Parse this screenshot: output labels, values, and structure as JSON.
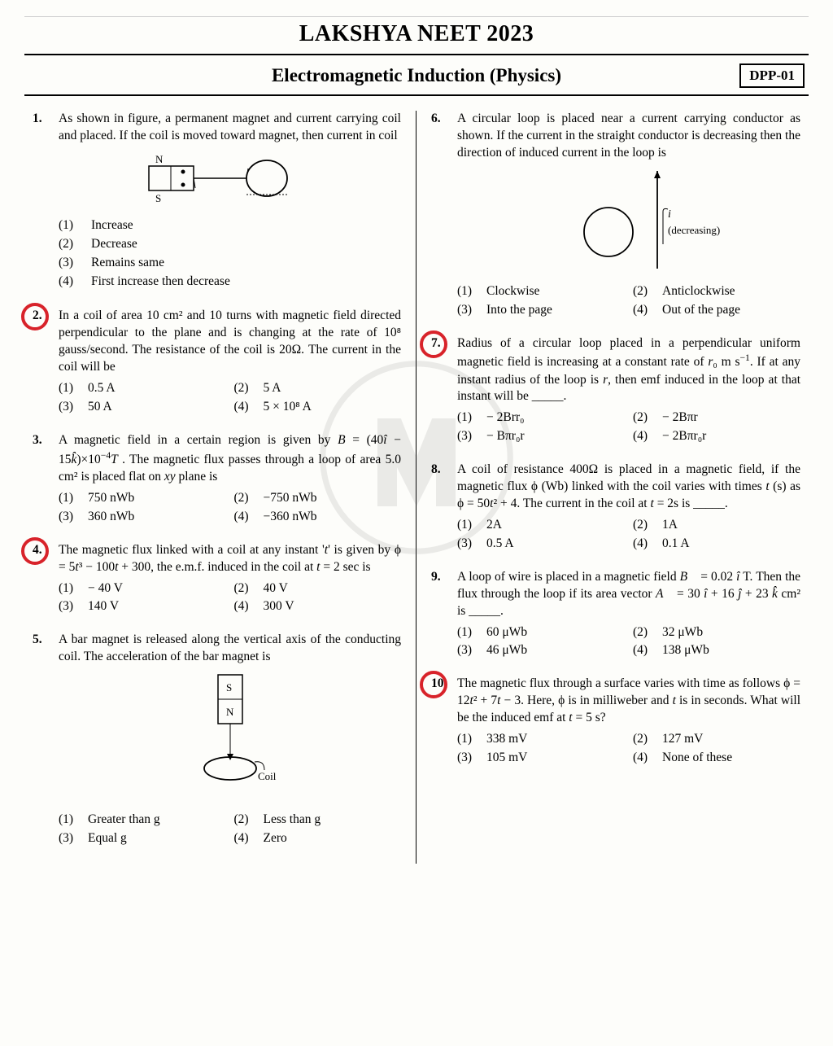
{
  "header": {
    "main_title": "LAKSHYA NEET 2023",
    "chapter": "Electromagnetic Induction (Physics)",
    "dpp": "DPP-01"
  },
  "circled_questions": [
    2,
    4,
    7,
    10
  ],
  "left": [
    {
      "num": "1.",
      "text": "As shown in figure, a permanent magnet and current carrying coil and placed. If the coil is moved toward magnet, then current in coil",
      "figure": "magnet_coil",
      "options_layout": "col",
      "options": [
        {
          "n": "(1)",
          "t": "Increase"
        },
        {
          "n": "(2)",
          "t": "Decrease"
        },
        {
          "n": "(3)",
          "t": "Remains same"
        },
        {
          "n": "(4)",
          "t": "First increase then decrease"
        }
      ]
    },
    {
      "num": "2.",
      "circled": true,
      "text": "In a coil of area 10 cm² and 10 turns with magnetic field directed perpendicular to the plane and is changing at the rate of 10⁸ gauss/second. The resistance of the coil is 20Ω. The current in the coil will be",
      "options_layout": "grid",
      "options": [
        {
          "n": "(1)",
          "t": "0.5 A"
        },
        {
          "n": "(2)",
          "t": "5 A"
        },
        {
          "n": "(3)",
          "t": "50 A"
        },
        {
          "n": "(4)",
          "t": "5 × 10⁸ A"
        }
      ]
    },
    {
      "num": "3.",
      "text_html": "A magnetic field in a certain region is given by <i>B</i> = (40<i>î</i> − 15<i>k̂</i>)×10<sup>−4</sup><i>T</i> . The magnetic flux passes through a loop of area 5.0 cm² is placed flat on <i>xy</i> plane is",
      "options_layout": "grid",
      "options": [
        {
          "n": "(1)",
          "t": "750 nWb"
        },
        {
          "n": "(2)",
          "t": "−750 nWb"
        },
        {
          "n": "(3)",
          "t": "360 nWb"
        },
        {
          "n": "(4)",
          "t": "−360 nWb"
        }
      ]
    },
    {
      "num": "4.",
      "circled": true,
      "text_html": "The magnetic flux linked with a coil at any instant '<i>t</i>' is given by ϕ = 5<i>t</i>³ − 100<i>t</i> + 300, the e.m.f. induced in the coil at <i>t</i> = 2 sec is",
      "options_layout": "grid",
      "options": [
        {
          "n": "(1)",
          "t": "− 40 V"
        },
        {
          "n": "(2)",
          "t": "40 V"
        },
        {
          "n": "(3)",
          "t": "140 V"
        },
        {
          "n": "(4)",
          "t": "300 V"
        }
      ]
    },
    {
      "num": "5.",
      "text": "A bar magnet is released along the vertical axis of the conducting coil. The acceleration of the bar magnet is",
      "figure": "magnet_drop",
      "options_layout": "grid",
      "options": [
        {
          "n": "(1)",
          "t": "Greater than g"
        },
        {
          "n": "(2)",
          "t": "Less than g"
        },
        {
          "n": "(3)",
          "t": "Equal g"
        },
        {
          "n": "(4)",
          "t": "Zero"
        }
      ]
    }
  ],
  "right": [
    {
      "num": "6.",
      "text": "A circular loop is placed near a current carrying conductor as shown. If the current in the straight conductor is decreasing then the direction of induced current in the loop is",
      "figure": "loop_wire",
      "figure_label_i": "i",
      "figure_label_dec": "(decreasing)",
      "options_layout": "grid",
      "options": [
        {
          "n": "(1)",
          "t": "Clockwise"
        },
        {
          "n": "(2)",
          "t": "Anticlockwise"
        },
        {
          "n": "(3)",
          "t": "Into the page"
        },
        {
          "n": "(4)",
          "t": "Out of the page"
        }
      ]
    },
    {
      "num": "7.",
      "circled": true,
      "text_html": "Radius of a circular loop placed in a perpendicular uniform magnetic field is increasing at a constant rate of <i>r</i>₀ m s<sup>−1</sup>. If at any instant radius of the loop is <i>r</i>, then emf induced in the loop at that instant will be _____.",
      "options_layout": "grid",
      "options": [
        {
          "n": "(1)",
          "t": "− 2Brr₀"
        },
        {
          "n": "(2)",
          "t": "− 2Bπr"
        },
        {
          "n": "(3)",
          "t": "− Bπr₀r"
        },
        {
          "n": "(4)",
          "t": "− 2Bπr₀r"
        }
      ]
    },
    {
      "num": "8.",
      "text_html": "A coil of resistance 400Ω is placed in a magnetic field, if the magnetic flux ϕ (Wb) linked with the coil varies with times <i>t</i> (s) as ϕ = 50<i>t</i>² + 4. The current in the coil at <i>t</i> = 2s is _____.",
      "options_layout": "grid",
      "options": [
        {
          "n": "(1)",
          "t": "2A"
        },
        {
          "n": "(2)",
          "t": "1A"
        },
        {
          "n": "(3)",
          "t": "0.5 A"
        },
        {
          "n": "(4)",
          "t": "0.1 A"
        }
      ]
    },
    {
      "num": "9.",
      "text_html": "A loop of wire is placed in a magnetic field <i>B⃗</i> = 0.02 <i>î</i> T. Then the flux through the loop if its area vector <i>A⃗</i> = 30 <i>î</i> + 16 <i>ĵ</i> + 23 <i>k̂</i> cm² is _____.",
      "options_layout": "grid",
      "options": [
        {
          "n": "(1)",
          "t": "60 μWb"
        },
        {
          "n": "(2)",
          "t": "32 μWb"
        },
        {
          "n": "(3)",
          "t": "46 μWb"
        },
        {
          "n": "(4)",
          "t": "138 μWb"
        }
      ]
    },
    {
      "num": "10.",
      "circled": true,
      "text_html": "The magnetic flux through a surface varies with time as follows ϕ = 12<i>t</i>² + 7<i>t</i> − 3. Here, ϕ is in milliweber and <i>t</i> is in seconds. What will be the induced emf at <i>t</i> = 5 s?",
      "options_layout": "grid",
      "options": [
        {
          "n": "(1)",
          "t": "338 mV"
        },
        {
          "n": "(2)",
          "t": "127 mV"
        },
        {
          "n": "(3)",
          "t": "105 mV"
        },
        {
          "n": "(4)",
          "t": "None of these"
        }
      ]
    }
  ],
  "figure_labels": {
    "q1_N": "N",
    "q1_S": "S",
    "q5_S": "S",
    "q5_N": "N",
    "q5_coil": "Coil"
  }
}
